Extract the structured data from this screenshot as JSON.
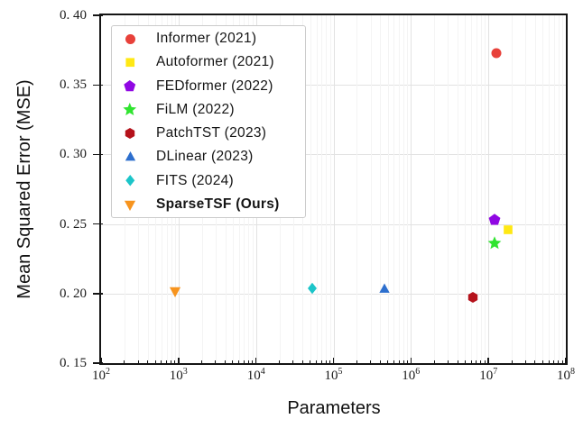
{
  "chart_data": {
    "type": "scatter",
    "xlabel": "Parameters",
    "ylabel": "Mean Squared Error (MSE)",
    "x_scale": "log",
    "xlim": [
      100,
      100000000
    ],
    "ylim": [
      0.15,
      0.4
    ],
    "grid": {
      "major_color": "#e2e2e2",
      "minor_color": "#f4f4f4",
      "minor_vertical": true
    },
    "x_ticks": [
      {
        "base": "10",
        "exp": "2"
      },
      {
        "base": "10",
        "exp": "3"
      },
      {
        "base": "10",
        "exp": "4"
      },
      {
        "base": "10",
        "exp": "5"
      },
      {
        "base": "10",
        "exp": "6"
      },
      {
        "base": "10",
        "exp": "7"
      },
      {
        "base": "10",
        "exp": "8"
      }
    ],
    "y_ticks": [
      {
        "value": 0.15,
        "label": "0. 15"
      },
      {
        "value": 0.2,
        "label": "0. 20"
      },
      {
        "value": 0.25,
        "label": "0. 25"
      },
      {
        "value": 0.3,
        "label": "0. 30"
      },
      {
        "value": 0.35,
        "label": "0. 35"
      },
      {
        "value": 0.4,
        "label": "0. 40"
      }
    ],
    "legend": {
      "position": "upper-left",
      "border_color": "#cbcbcb",
      "background": "#ffffff"
    },
    "series": [
      {
        "name": "Informer (2021)",
        "marker": "circle",
        "color": "#e8413a",
        "params": 12500000,
        "mse": 0.373,
        "bold": false
      },
      {
        "name": "Autoformer (2021)",
        "marker": "square",
        "color": "#ffe814",
        "params": 18000000,
        "mse": 0.246,
        "bold": false
      },
      {
        "name": "FEDformer (2022)",
        "marker": "pentagon",
        "color": "#9007e3",
        "params": 12000000,
        "mse": 0.253,
        "bold": false
      },
      {
        "name": "FiLM (2022)",
        "marker": "star",
        "color": "#30e430",
        "params": 12000000,
        "mse": 0.236,
        "bold": false
      },
      {
        "name": "PatchTST (2023)",
        "marker": "hexagon",
        "color": "#b5121b",
        "params": 6300000,
        "mse": 0.197,
        "bold": false
      },
      {
        "name": "DLinear (2023)",
        "marker": "triangle-up",
        "color": "#2d6fce",
        "params": 460000,
        "mse": 0.203,
        "bold": false
      },
      {
        "name": "FITS (2024)",
        "marker": "diamond",
        "color": "#1cc5c9",
        "params": 53000,
        "mse": 0.204,
        "bold": false
      },
      {
        "name": "SparseTSF (Ours)",
        "marker": "triangle-down",
        "color": "#f7941e",
        "params": 900,
        "mse": 0.202,
        "bold": true
      }
    ]
  }
}
